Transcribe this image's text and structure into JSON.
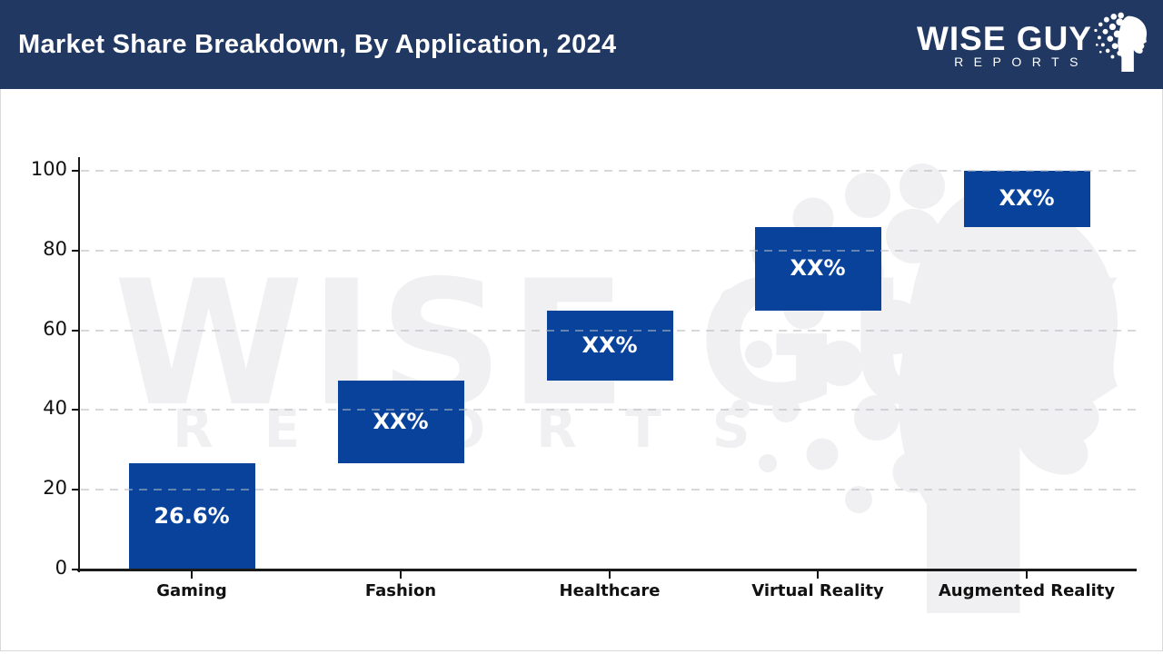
{
  "header": {
    "title": "Market Share Breakdown, By Application, 2024",
    "logo": {
      "line1": "WISE GUY",
      "line2": "REPORTS"
    }
  },
  "watermark": {
    "line1": "WISE GUY",
    "line2": "REPORTS"
  },
  "colors": {
    "header_bg": "#213862",
    "bar": "#08429b",
    "grid": "#d9d9d9",
    "axis": "#1a1a1a",
    "watermark": "#f0f0f2",
    "bar_label": "#ffffff"
  },
  "chart_data": {
    "type": "bar",
    "subtype": "waterfall",
    "title": "Market Share Breakdown, By Application, 2024",
    "xlabel": "",
    "ylabel": "",
    "categories": [
      "Gaming",
      "Fashion",
      "Healthcare",
      "Virtual Reality",
      "Augmented Reality"
    ],
    "segments": [
      {
        "category": "Gaming",
        "start": 0,
        "end": 26.6,
        "label": "26.6%"
      },
      {
        "category": "Fashion",
        "start": 26.6,
        "end": 47.3,
        "label": "XX%"
      },
      {
        "category": "Healthcare",
        "start": 47.3,
        "end": 65.0,
        "label": "XX%"
      },
      {
        "category": "Virtual Reality",
        "start": 65.0,
        "end": 85.8,
        "label": "XX%"
      },
      {
        "category": "Augmented Reality",
        "start": 85.8,
        "end": 100.0,
        "label": "XX%"
      }
    ],
    "yticks": [
      0,
      20,
      40,
      60,
      80,
      100
    ],
    "ylim": [
      0,
      103
    ],
    "grid": "dashed-horizontal",
    "legend": "none",
    "bar_color": "#08429b",
    "label_color": "#ffffff"
  }
}
